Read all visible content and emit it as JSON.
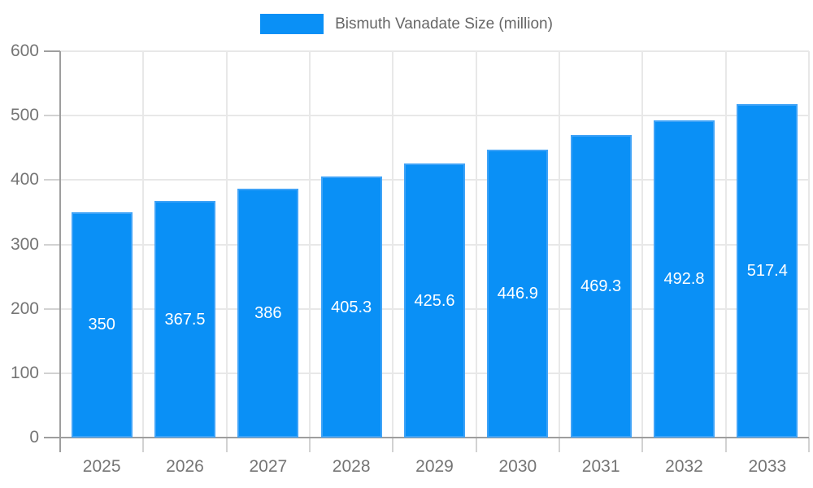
{
  "chart_data": {
    "type": "bar",
    "title": "Bismuth Vanadate Size (million)",
    "categories": [
      "2025",
      "2026",
      "2027",
      "2028",
      "2029",
      "2030",
      "2031",
      "2032",
      "2033"
    ],
    "values": [
      350,
      367.5,
      386,
      405.3,
      425.6,
      446.9,
      469.3,
      492.8,
      517.4
    ],
    "value_labels": [
      "350",
      "367.5",
      "386",
      "405.3",
      "425.6",
      "446.9",
      "469.3",
      "492.8",
      "517.4"
    ],
    "xlabel": "",
    "ylabel": "",
    "ylim": [
      0,
      600
    ],
    "yticks": [
      0,
      100,
      200,
      300,
      400,
      500,
      600
    ],
    "grid": true,
    "legend_position": "top",
    "bar_label_position": "center"
  },
  "colors": {
    "bar": "#0a90f6",
    "bar_border": "#3fa3f7",
    "grid": "#e8e8e8",
    "tick": "#d2d2d2",
    "axis": "#9e9e9e",
    "tick_text": "#757575",
    "legend_text": "#666666",
    "bar_label_text": "#ffffff",
    "background": "#ffffff"
  }
}
